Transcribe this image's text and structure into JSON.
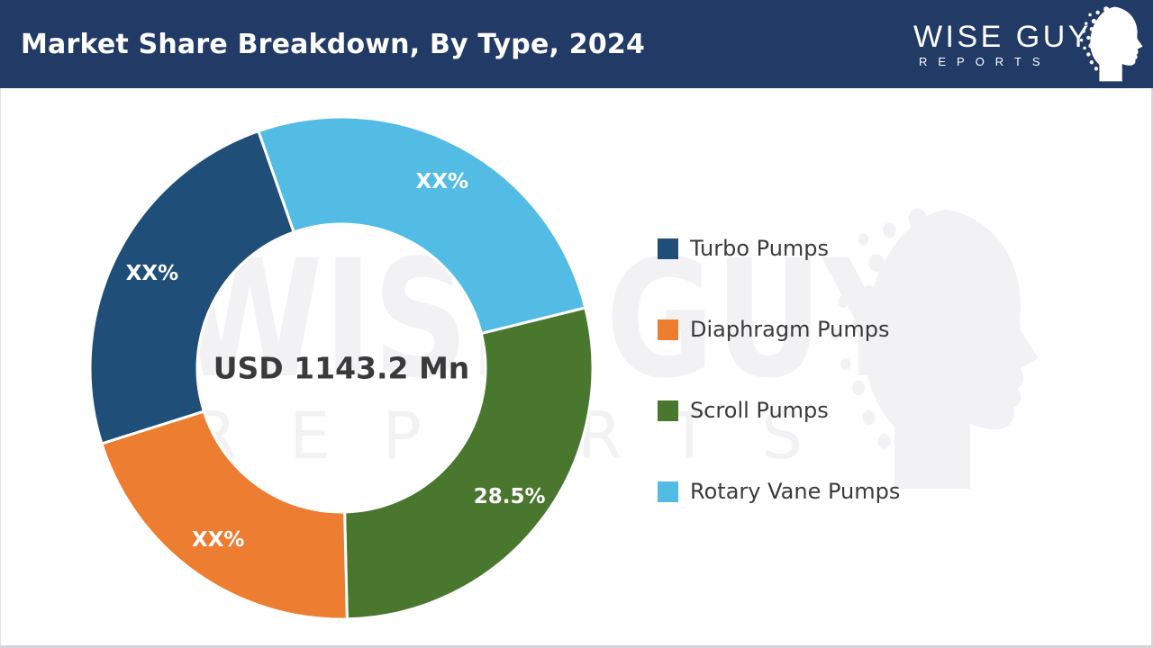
{
  "header": {
    "title": "Market Share Breakdown, By Type, 2024",
    "bg_color": "#213A66",
    "logo": {
      "wordmark": "WISE GUY",
      "subtitle": "REPORTS"
    }
  },
  "watermark": {
    "line1": "WISE GUY",
    "line2": "REPORTS"
  },
  "chart_data": {
    "type": "pie",
    "subtype": "donut",
    "title": "Market Share Breakdown, By Type, 2024",
    "center_label": "USD 1143.2 Mn",
    "start_angle_deg": -19.3,
    "inner_radius_ratio": 0.574,
    "slice_gap_color": "#ffffff",
    "segments": [
      {
        "label": "Rotary Vane Pumps",
        "value_label": "XX%",
        "share_pct": 26.5,
        "color": "#52BCE4"
      },
      {
        "label": "Scroll Pumps",
        "value_label": "28.5%",
        "share_pct": 28.5,
        "color": "#4A772E"
      },
      {
        "label": "Diaphragm Pumps",
        "value_label": "XX%",
        "share_pct": 20.5,
        "color": "#ED7D31"
      },
      {
        "label": "Turbo Pumps",
        "value_label": "XX%",
        "share_pct": 24.5,
        "color": "#1F4E79"
      }
    ],
    "legend": {
      "position": "right",
      "items": [
        {
          "label": "Turbo Pumps",
          "color": "#1F4E79"
        },
        {
          "label": "Diaphragm Pumps",
          "color": "#ED7D31"
        },
        {
          "label": "Scroll Pumps",
          "color": "#4A772E"
        },
        {
          "label": "Rotary Vane Pumps",
          "color": "#52BCE4"
        }
      ]
    }
  }
}
